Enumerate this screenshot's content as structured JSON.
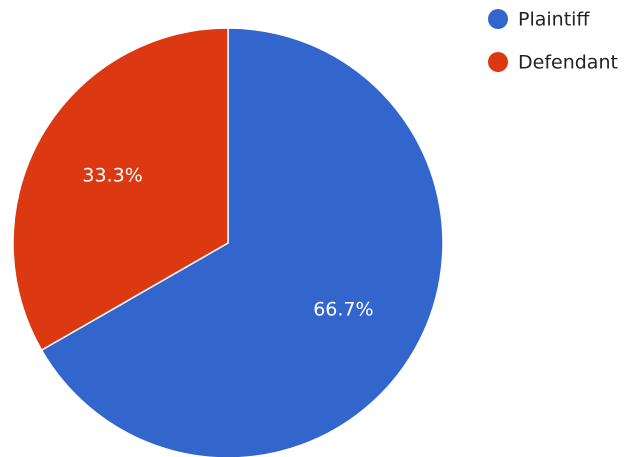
{
  "chart_data": {
    "type": "pie",
    "title": "",
    "legend_position": "top-right",
    "slices": [
      {
        "name": "Plaintiff",
        "value": 66.7,
        "label": "66.7%",
        "color": "#3366cc"
      },
      {
        "name": "Defendant",
        "value": 33.3,
        "label": "33.3%",
        "color": "#dc3912"
      }
    ],
    "start_angle_deg": 0,
    "direction": "clockwise",
    "slice_border_color": "#ffffff"
  }
}
